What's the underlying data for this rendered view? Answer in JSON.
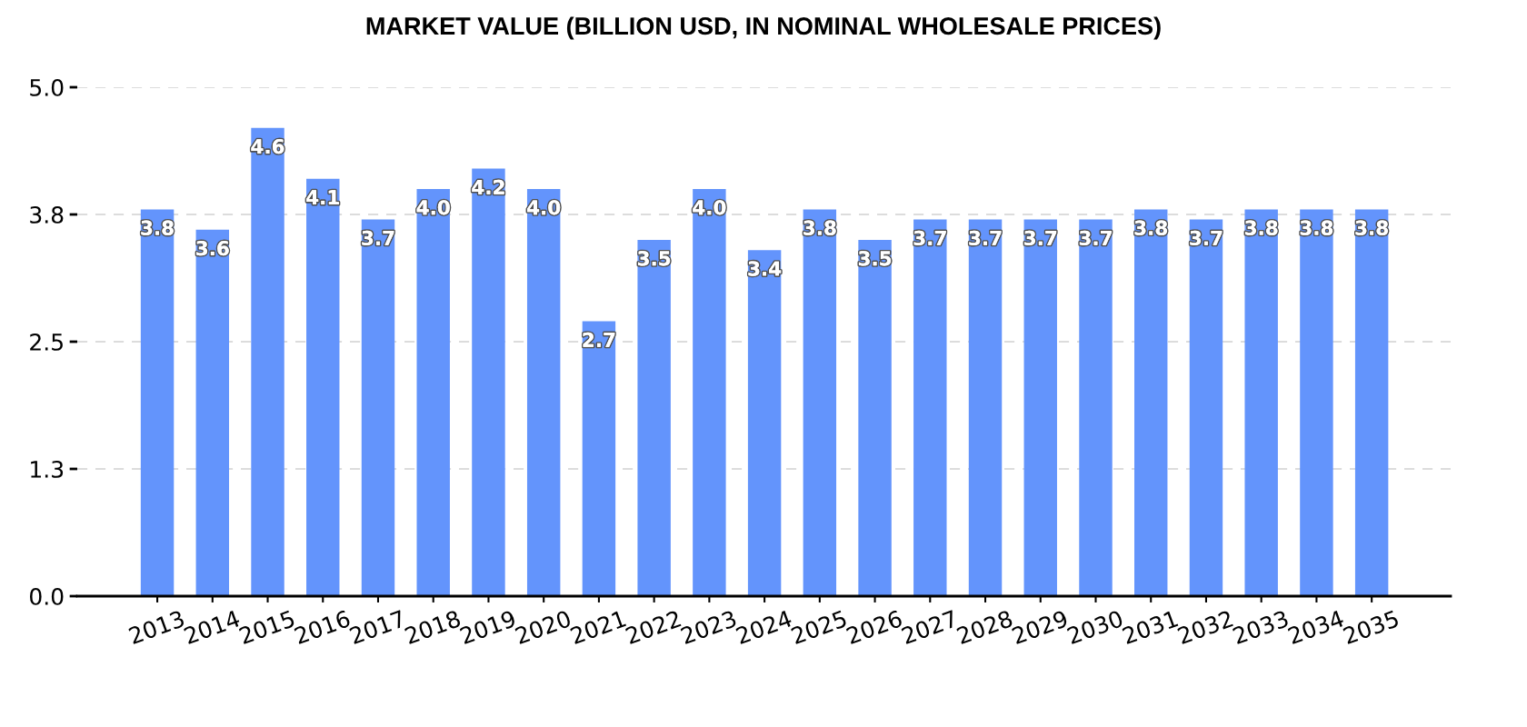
{
  "chart_data": {
    "type": "bar",
    "title": "MARKET VALUE (BILLION USD, IN NOMINAL WHOLESALE PRICES)",
    "categories": [
      "2013",
      "2014",
      "2015",
      "2016",
      "2017",
      "2018",
      "2019",
      "2020",
      "2021",
      "2022",
      "2023",
      "2024",
      "2025",
      "2026",
      "2027",
      "2028",
      "2029",
      "2030",
      "2031",
      "2032",
      "2033",
      "2034",
      "2035"
    ],
    "values": [
      3.8,
      3.6,
      4.6,
      4.1,
      3.7,
      4.0,
      4.2,
      4.0,
      2.7,
      3.5,
      4.0,
      3.4,
      3.8,
      3.5,
      3.7,
      3.7,
      3.7,
      3.7,
      3.8,
      3.7,
      3.8,
      3.8,
      3.8
    ],
    "value_labels": [
      "3.8",
      "3.6",
      "4.6",
      "4.1",
      "3.7",
      "4.0",
      "4.2",
      "4.0",
      "2.7",
      "3.5",
      "4.0",
      "3.4",
      "3.8",
      "3.5",
      "3.7",
      "3.7",
      "3.7",
      "3.7",
      "3.8",
      "3.7",
      "3.8",
      "3.8",
      "3.8"
    ],
    "color": "#6394fc",
    "ylim": [
      0,
      5
    ],
    "yticks": [
      {
        "value": 0,
        "label": "0.0"
      },
      {
        "value": 1.25,
        "label": "1.3"
      },
      2.5,
      {
        "value": 3.75,
        "label": "3.8"
      },
      {
        "value": 5,
        "label": "5.0"
      }
    ],
    "grid": "y"
  }
}
